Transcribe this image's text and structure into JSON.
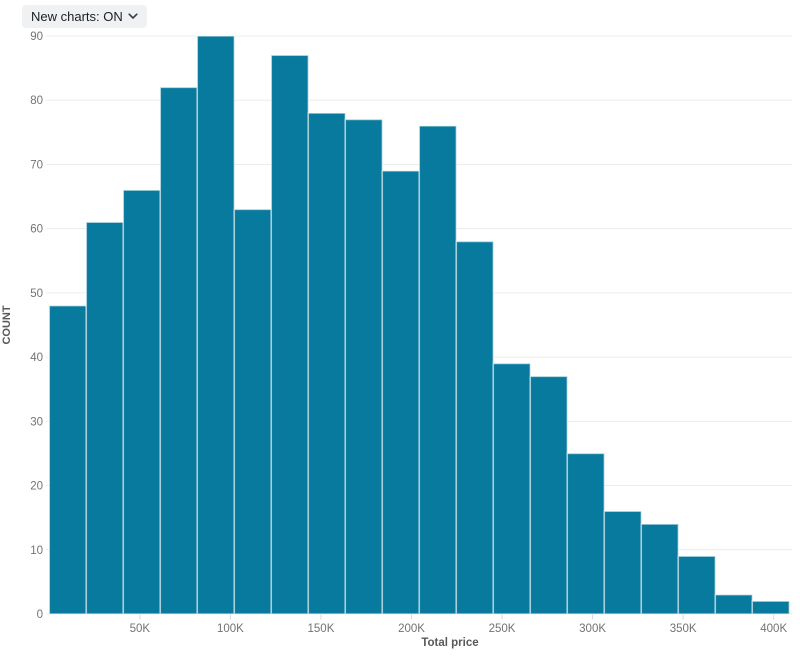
{
  "toolbar": {
    "new_charts_label": "New charts: ON",
    "chevron_icon": "chevron-down"
  },
  "colors": {
    "background": "#ffffff",
    "bar_fill": "#077a9d",
    "bar_border": "rgba(255,255,255,0.55)",
    "gridline": "#ececec",
    "tick_mark": "#d9d9d9",
    "tick_text": "#737373",
    "axis_title_text": "#595959",
    "pill_bg": "#f0f1f3",
    "pill_text": "#1b1f23"
  },
  "chart_data": {
    "type": "bar",
    "subtype": "histogram",
    "title": "",
    "xlabel": "Total price",
    "ylabel": "COUNT",
    "values": [
      48,
      61,
      66,
      82,
      90,
      63,
      87,
      78,
      77,
      69,
      76,
      58,
      39,
      37,
      25,
      16,
      14,
      9,
      3,
      2
    ],
    "num_bins": 20,
    "x_tick_labels": [
      "50K",
      "100K",
      "150K",
      "200K",
      "250K",
      "300K",
      "350K",
      "400K"
    ],
    "x_tick_interval": 50000,
    "y_ticks": [
      0,
      10,
      20,
      30,
      40,
      50,
      60,
      70,
      80,
      90
    ],
    "ylim": [
      0,
      90
    ],
    "grid": "horizontal",
    "legend": "none"
  }
}
